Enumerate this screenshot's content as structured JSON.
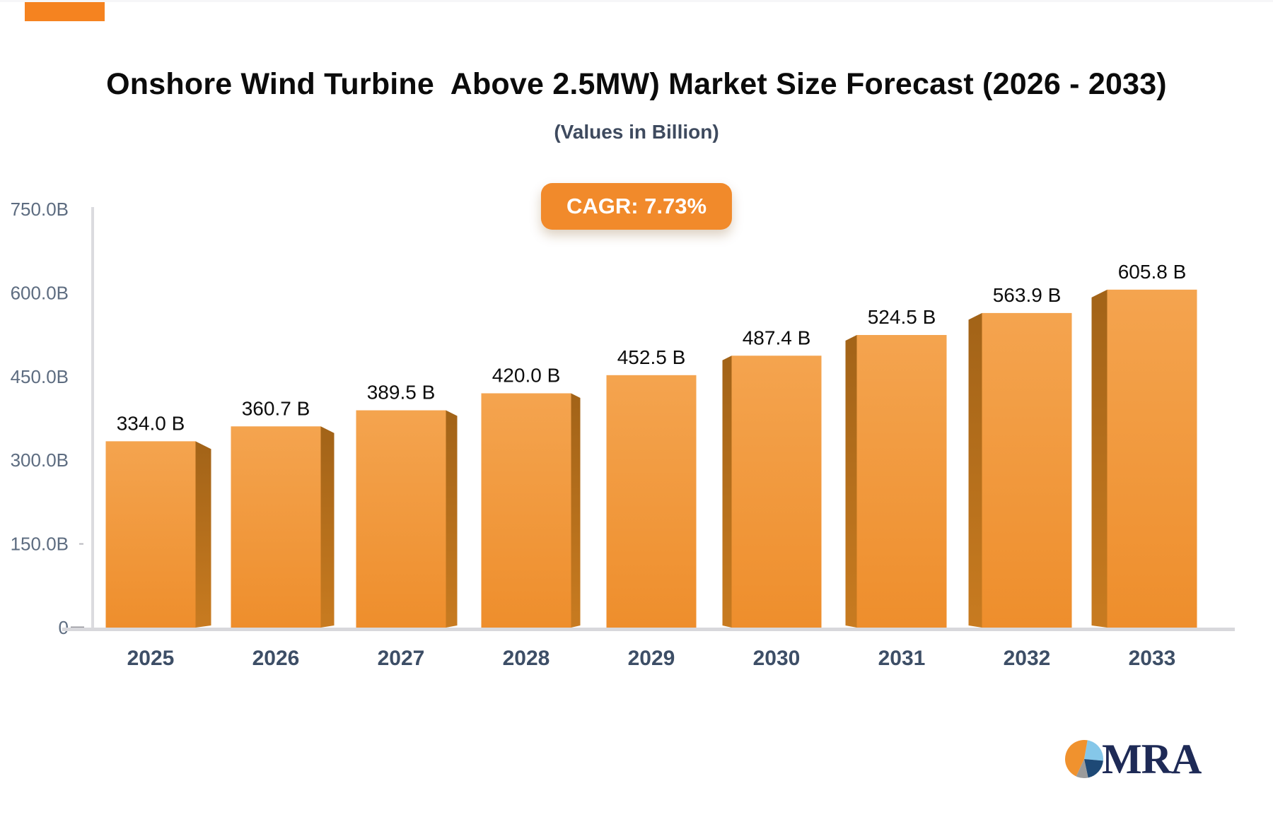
{
  "page": {
    "title": "Onshore Wind Turbine  Above 2.5MW) Market Size Forecast (2026 - 2033)",
    "subtitle": "(Values in Billion)",
    "cagr_label": "CAGR: 7.73%",
    "accent_color": "#F18A2B"
  },
  "chart_data": {
    "type": "bar",
    "title": "Onshore Wind Turbine  Above 2.5MW) Market Size Forecast (2026 - 2033)",
    "subtitle": "(Values in Billion)",
    "annotation": "CAGR: 7.73%",
    "categories": [
      "2025",
      "2026",
      "2027",
      "2028",
      "2029",
      "2030",
      "2031",
      "2032",
      "2033"
    ],
    "values": [
      334.0,
      360.7,
      389.5,
      420.0,
      452.5,
      487.4,
      524.5,
      563.9,
      605.8
    ],
    "value_labels": [
      "334.0 B",
      "360.7 B",
      "389.5 B",
      "420.0 B",
      "452.5 B",
      "487.4 B",
      "524.5 B",
      "563.9 B",
      "605.8 B"
    ],
    "y_ticks": [
      {
        "value": 750,
        "label": "750.0B"
      },
      {
        "value": 600,
        "label": "600.0B"
      },
      {
        "value": 450,
        "label": "450.0B"
      },
      {
        "value": 300,
        "label": "300.0B"
      },
      {
        "value": 150,
        "label": "150.0B"
      },
      {
        "value": 0,
        "label": "0"
      }
    ],
    "ylim": [
      0,
      750
    ],
    "grid": false,
    "legend": null,
    "bar_color_top": "#F4A44F",
    "bar_color_bottom": "#EE8E2C",
    "bar_side_color_top": "#A26318",
    "bar_side_color_bottom": "#C87B20",
    "axis_color": "#DBDBDF",
    "baseline_color": "#D8D8DC"
  },
  "logo": {
    "text": "MRA",
    "text_color": "#1e2a56",
    "pie_colors": {
      "orange": "#F0922E",
      "light_blue": "#85C7E9",
      "navy": "#1E4976",
      "gray": "#9B9B9B"
    }
  }
}
